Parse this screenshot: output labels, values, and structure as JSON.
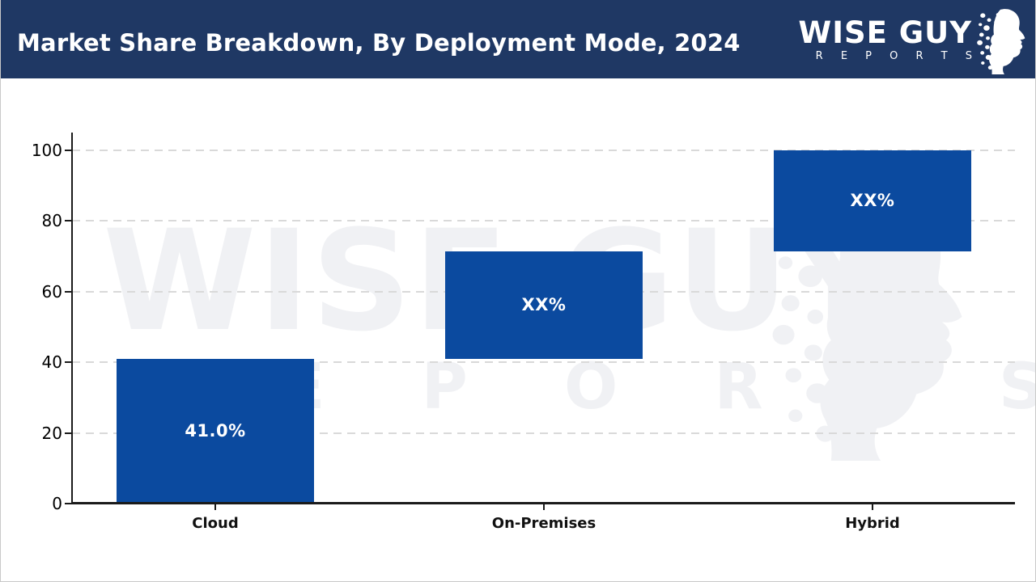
{
  "page": {
    "background": "#ffffff",
    "border_color": "#c9c9c9"
  },
  "header": {
    "background": "#1f3864",
    "title": "Market Share Breakdown, By Deployment Mode, 2024",
    "logo": {
      "line1": "WISE GUY",
      "line2": "R E P O R T S"
    }
  },
  "watermark": {
    "line1": "WISE GUY",
    "line2": "R E P O R T S",
    "color": "#f0f1f4"
  },
  "chart_data": {
    "type": "bar",
    "subtype": "floating-segment-waterfall",
    "title": "Market Share Breakdown, By Deployment Mode, 2024",
    "xlabel": "",
    "ylabel": "",
    "categories": [
      "Cloud",
      "On-Premises",
      "Hybrid"
    ],
    "segments": [
      {
        "category": "Cloud",
        "start": 0,
        "end": 41,
        "label": "41.0%"
      },
      {
        "category": "On-Premises",
        "start": 41,
        "end": 71.4,
        "label": "XX%"
      },
      {
        "category": "Hybrid",
        "start": 71.4,
        "end": 100,
        "label": "XX%"
      }
    ],
    "y_ticks": [
      0,
      20,
      40,
      60,
      80,
      100
    ],
    "ylim": [
      0,
      105
    ],
    "grid": "horizontal-dashed",
    "legend": "none",
    "bar_color": "#0b4a9f",
    "bar_label_color": "#ffffff",
    "axis_color": "#1a1a1a",
    "grid_color": "#d9d9d9",
    "tick_label_color": "#000000"
  }
}
